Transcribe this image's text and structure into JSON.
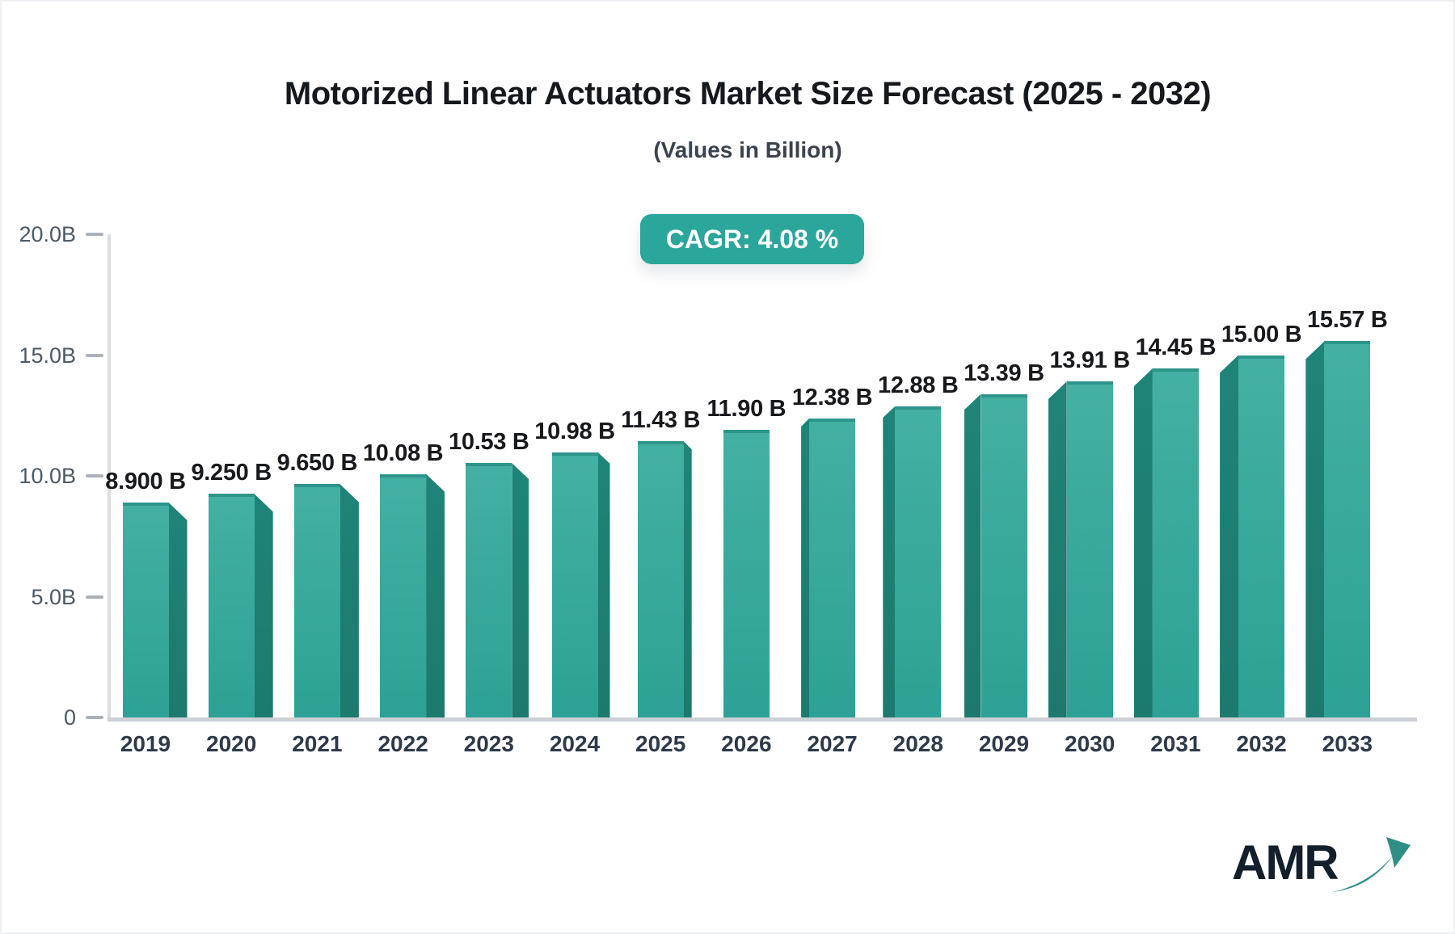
{
  "page": {
    "title": "Motorized Linear Actuators Market Size Forecast (2025 - 2032)",
    "subtitle": "(Values in Billion)",
    "cagr_badge": "CAGR: 4.08 %",
    "logo_text": "AMR"
  },
  "colors": {
    "accent_teal": "#2ba69b",
    "bar_face_top": "#43b0a3",
    "bar_face_bottom": "#2da195",
    "bar_face_cap": "#2d958a",
    "bar_side_top": "#1f8478",
    "bar_side_bottom": "#1d796d",
    "axis_line": "#dadde1",
    "baseline": "#ccd1d7",
    "badge_text": "#ffffff",
    "logo_navy": "#131f2a",
    "logo_teal": "#2f8e86"
  },
  "chart_data": {
    "type": "bar",
    "title": "Motorized Linear Actuators Market Size Forecast (2025 - 2032)",
    "subtitle": "(Values in Billion)",
    "cagr": "4.08 %",
    "categories": [
      "2019",
      "2020",
      "2021",
      "2022",
      "2023",
      "2024",
      "2025",
      "2026",
      "2027",
      "2028",
      "2029",
      "2030",
      "2031",
      "2032",
      "2033"
    ],
    "values": [
      8.9,
      9.25,
      9.65,
      10.08,
      10.53,
      10.98,
      11.43,
      11.9,
      12.38,
      12.88,
      13.39,
      13.91,
      14.45,
      15.0,
      15.57
    ],
    "value_labels": [
      "8.900 B",
      "9.250 B",
      "9.650 B",
      "10.08 B",
      "10.53 B",
      "10.98 B",
      "11.43 B",
      "11.90 B",
      "12.38 B",
      "12.88 B",
      "13.39 B",
      "13.91 B",
      "14.45 B",
      "15.00 B",
      "15.57 B"
    ],
    "xlabel": "",
    "ylabel": "",
    "ylim": [
      0,
      20
    ],
    "yticks": [
      20,
      15,
      10,
      5,
      0
    ],
    "ytick_labels": [
      "20.0B",
      "15.0B",
      "10.0B",
      "5.0B",
      "0"
    ],
    "grid": false,
    "legend": false,
    "bar_style": "3d-extruded",
    "unit": "Billion"
  }
}
